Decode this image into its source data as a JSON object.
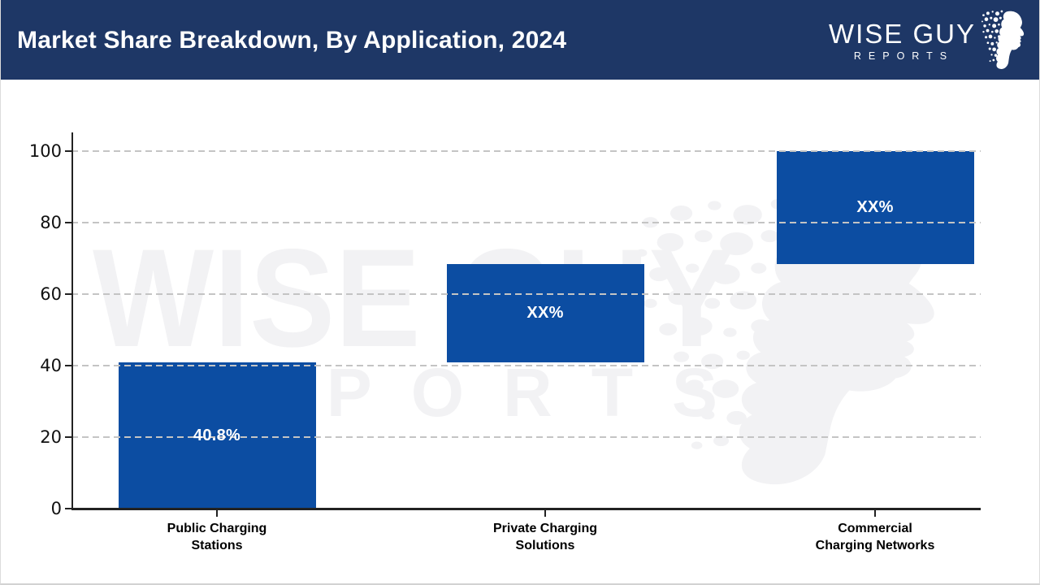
{
  "header": {
    "title": "Market Share Breakdown, By Application, 2024",
    "logo": {
      "line1": "WISE GUY",
      "line2": "REPORTS"
    }
  },
  "watermark": {
    "line1": "WISE GUY",
    "line2": "REPORTS"
  },
  "colors": {
    "header_bg": "#1e3766",
    "bar": "#0c4da2",
    "bar_label": "#ffffff",
    "watermark": "#f2f2f4",
    "gridline": "#c4c4c4",
    "axis": "#222222"
  },
  "chart_data": {
    "type": "bar",
    "subtype": "waterfall",
    "title": "Market Share Breakdown, By Application, 2024",
    "categories": [
      [
        "Public Charging",
        "Stations"
      ],
      [
        "Private Charging",
        "Solutions"
      ],
      [
        "Commercial",
        "Charging Networks"
      ]
    ],
    "segments": [
      {
        "category": "Public Charging Stations",
        "start": 0,
        "end": 40.8,
        "label": "40.8%"
      },
      {
        "category": "Private Charging Solutions",
        "start": 40.8,
        "end": 68.4,
        "label": "XX%"
      },
      {
        "category": "Commercial Charging Networks",
        "start": 68.4,
        "end": 100,
        "label": "XX%"
      }
    ],
    "yticks": [
      0,
      20,
      40,
      60,
      80,
      100
    ],
    "ylim": [
      0,
      105
    ],
    "xlabel": "",
    "ylabel": "",
    "grid": "horizontal-dashed",
    "legend": "none"
  }
}
